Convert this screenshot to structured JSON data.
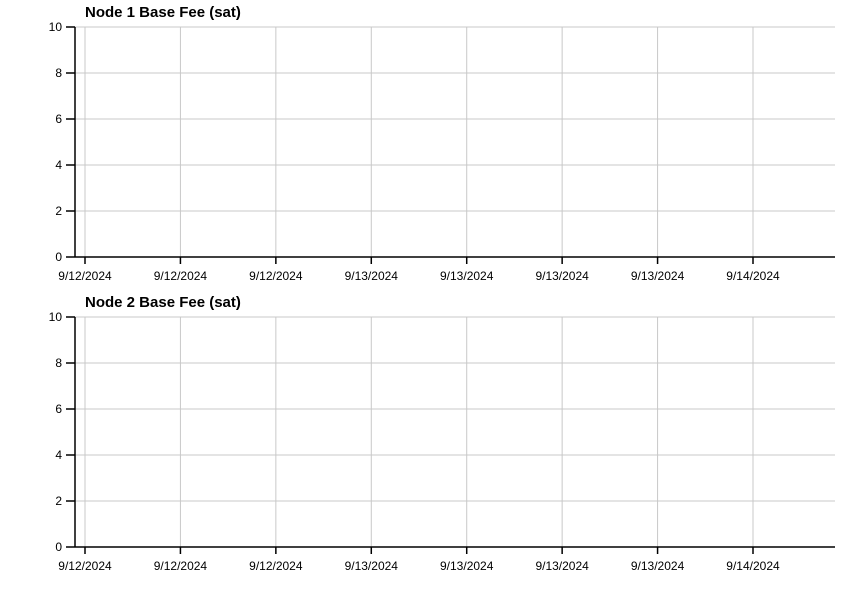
{
  "colors": {
    "background": "#ffffff",
    "grid": "#c8c8c8",
    "axis": "#000000",
    "label_text": "#000000",
    "title_text": "#000000"
  },
  "chart_data": [
    {
      "type": "line",
      "title": "Node 1 Base Fee (sat)",
      "xlabel": "",
      "ylabel": "",
      "x_tick_labels": [
        "9/12/2024",
        "9/12/2024",
        "9/12/2024",
        "9/13/2024",
        "9/13/2024",
        "9/13/2024",
        "9/13/2024",
        "9/14/2024"
      ],
      "y_ticks": [
        0,
        2,
        4,
        6,
        8,
        10
      ],
      "y_tick_labels": [
        "0",
        "2",
        "4",
        "6",
        "8",
        "10"
      ],
      "ylim": [
        0,
        10
      ],
      "grid": true,
      "legend": false,
      "series": []
    },
    {
      "type": "line",
      "title": "Node 2 Base Fee (sat)",
      "xlabel": "",
      "ylabel": "",
      "x_tick_labels": [
        "9/12/2024",
        "9/12/2024",
        "9/12/2024",
        "9/13/2024",
        "9/13/2024",
        "9/13/2024",
        "9/13/2024",
        "9/14/2024"
      ],
      "y_ticks": [
        0,
        2,
        4,
        6,
        8,
        10
      ],
      "y_tick_labels": [
        "0",
        "2",
        "4",
        "6",
        "8",
        "10"
      ],
      "ylim": [
        0,
        10
      ],
      "grid": true,
      "legend": false,
      "series": []
    }
  ]
}
